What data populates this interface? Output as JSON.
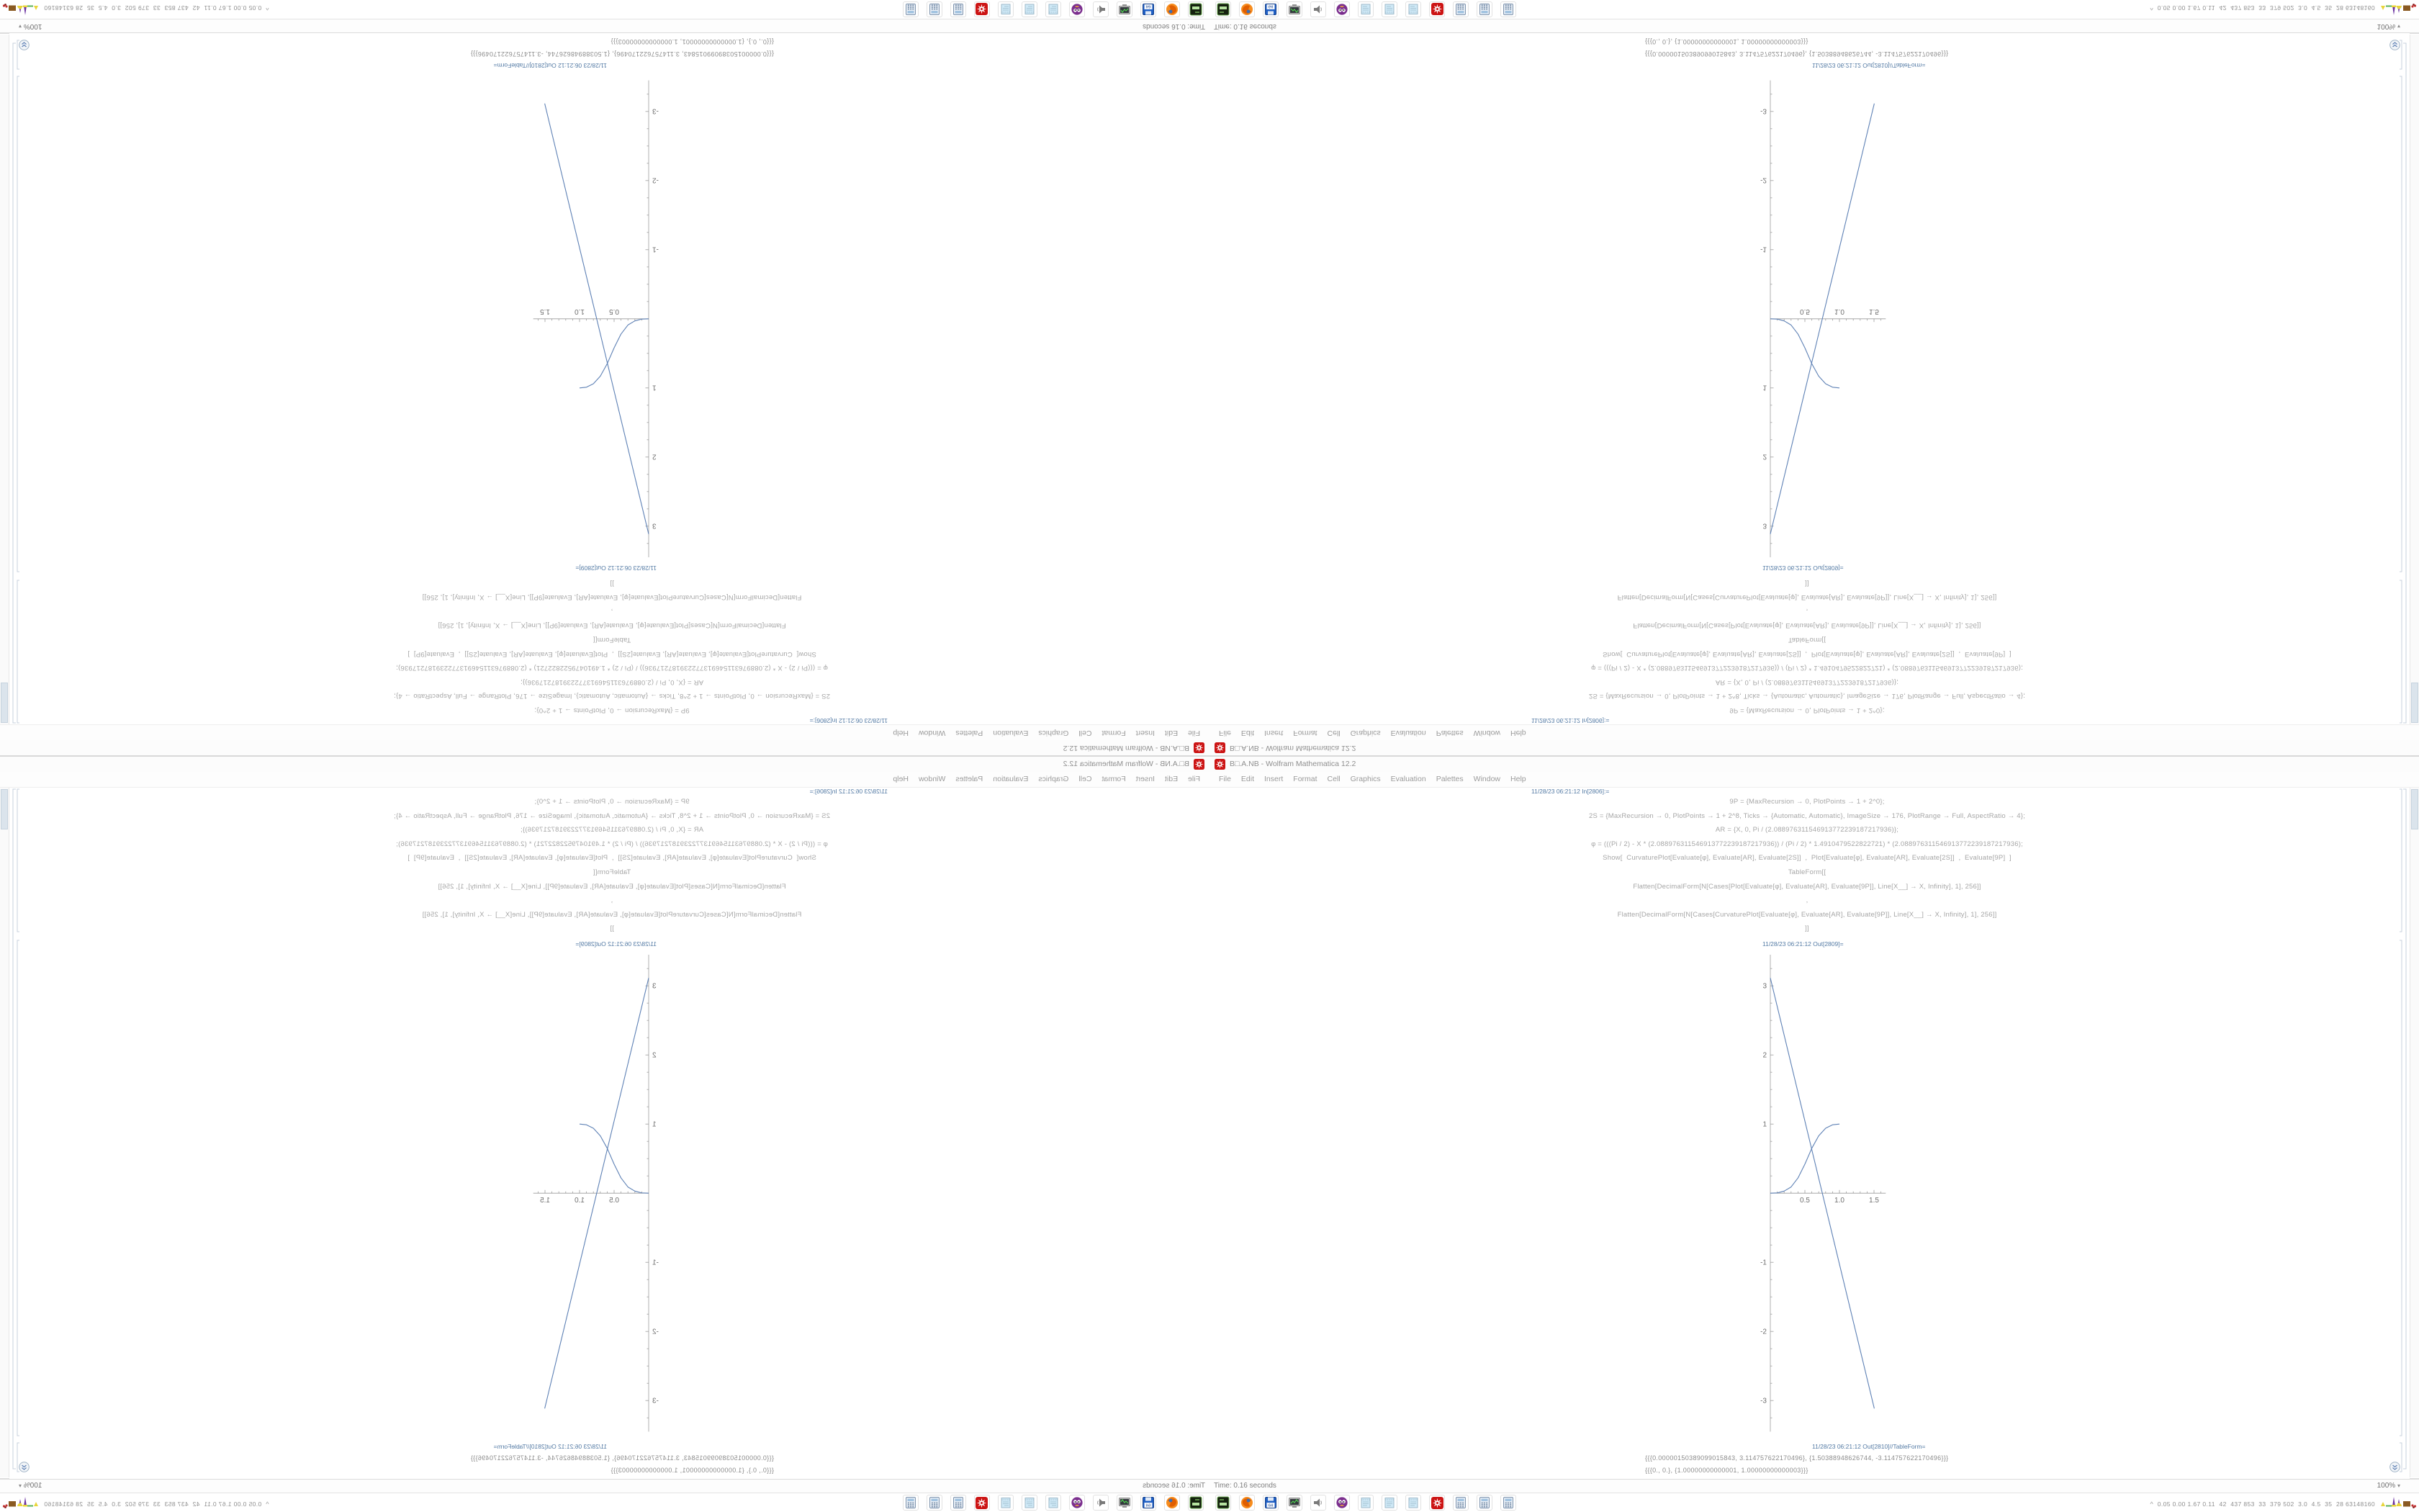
{
  "window": {
    "title": "B□.A.NB - Wolfram Mathematica 12.2"
  },
  "menu": {
    "items": [
      "File",
      "Edit",
      "Insert",
      "Format",
      "Cell",
      "Graphics",
      "Evaluation",
      "Palettes",
      "Window",
      "Help"
    ]
  },
  "notebook": {
    "in_label": "11/28/23 06:21:12 In[2806]:=",
    "out_plot_label": "11/28/23 06:21:12 Out[2809]=",
    "out_table_label": "11/28/23 06:21:12 Out[2810]//TableForm=",
    "code_lines": [
      "9P = {MaxRecursion → 0, PlotPoints → 1 + 2^0};",
      "2S = {MaxRecursion → 0, PlotPoints → 1 + 2^8, Ticks → {Automatic, Automatic}, ImageSize → 176, PlotRange → Full, AspectRatio → 4};",
      "AR = {X, 0, Pi / (2.088976311546913772239187217936)};",
      "φ = (((Pi / 2) - X * (2.088976311546913772239187217936)) / (Pi / 2) * 1.4910479522822721) * (2.088976311546913772239187217936);",
      "Show[  CurvaturePlot[Evaluate[φ], Evaluate[AR], Evaluate[2S]]  ,  Plot[Evaluate[φ], Evaluate[AR], Evaluate[2S]]  ,  Evaluate[9P]  ]",
      "TableForm[[",
      "Flatten[DecimalForm[N[Cases[Plot[Evaluate[φ], Evaluate[AR], Evaluate[9P]], Line[X__] → X, Infinity], 1], 256]]",
      ",",
      "Flatten[DecimalForm[N[Cases[CurvaturePlot[Evaluate[φ], Evaluate[AR], Evaluate[9P]], Line[X__] → X, Infinity], 1], 256]]",
      "]]"
    ],
    "table_rows": [
      "{{{0.00000150389099015843, 3.114757622170496}, {1.50388948626744, -3.114757622170496}}}",
      "{{{0., 0.}, {1.00000000000001, 1.00000000000003}}}"
    ]
  },
  "status_bar": {
    "timing": "Time: 0.16 seconds",
    "magnification": "100%",
    "magnification_caret": "▾"
  },
  "taskbar": {
    "caret": "^",
    "stats": "0.05 0.00 1.67 0.11  42  437 853  33  379 502  3.0  4.5  35  28 63148160",
    "icons": [
      {
        "name": "terminal-icon"
      },
      {
        "name": "firefox-icon"
      },
      {
        "name": "floppy-64-icon",
        "label": "64"
      },
      {
        "name": "system-monitor-icon"
      },
      {
        "name": "speaker-icon"
      },
      {
        "name": "purple-monster-icon"
      },
      {
        "name": "notepad-icon"
      },
      {
        "name": "notepad-icon"
      },
      {
        "name": "notepad-icon"
      },
      {
        "name": "mathematica-icon"
      },
      {
        "name": "calculator-icon"
      },
      {
        "name": "calculator-icon"
      },
      {
        "name": "calculator-icon"
      }
    ]
  },
  "chart_data": {
    "type": "line",
    "title": "Out[2809] Show[CurvaturePlot, Plot]",
    "xlabel": "",
    "ylabel": "",
    "xlim": [
      0,
      1.67
    ],
    "ylim": [
      -3.45,
      3.45
    ],
    "x_ticks": [
      0.5,
      1.0,
      1.5
    ],
    "x_tick_labels": [
      "0.5",
      "1.0",
      "1.5"
    ],
    "x_minor_step": 0.1,
    "y_ticks": [
      -3,
      -2,
      -1,
      1,
      2,
      3
    ],
    "y_tick_labels": [
      "-3",
      "-2",
      "-1",
      "1",
      "2",
      "3"
    ],
    "y_minor_step": 0.25,
    "grid": false,
    "legend": false,
    "series": [
      {
        "name": "phi-line",
        "color": "#5e81b5",
        "points": [
          [
            1.5e-06,
            3.114757622170496
          ],
          [
            1.50388948626744,
            -3.114757622170496
          ]
        ]
      },
      {
        "name": "curvature-s-curve",
        "color": "#5e81b5",
        "points": [
          [
            0,
            0
          ],
          [
            0.1,
            0.004
          ],
          [
            0.2,
            0.03
          ],
          [
            0.3,
            0.09
          ],
          [
            0.4,
            0.22
          ],
          [
            0.5,
            0.42
          ],
          [
            0.6,
            0.65
          ],
          [
            0.7,
            0.83
          ],
          [
            0.8,
            0.94
          ],
          [
            0.9,
            0.99
          ],
          [
            1.0,
            1.0
          ]
        ]
      }
    ]
  },
  "colors": {
    "accent_blue": "#5e81b5",
    "label_blue": "#537aa4",
    "mathematica_red": "#cc1414",
    "code_gray": "#a6a6a6",
    "axis_gray": "#9b9b9b"
  }
}
